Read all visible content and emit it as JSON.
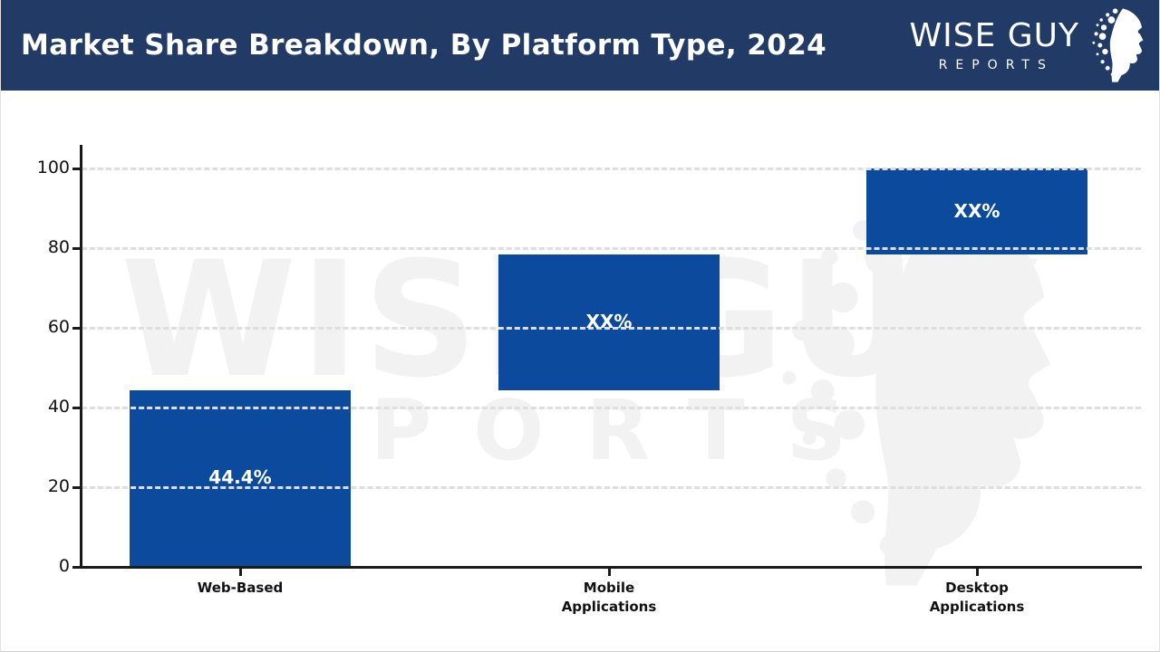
{
  "header": {
    "title": "Market Share Breakdown, By Platform Type, 2024",
    "logo": {
      "name": "WISE GUY",
      "sub": "REPORTS"
    }
  },
  "watermark": {
    "line1": "WISE GUY",
    "line2": "REPORTS"
  },
  "chart_data": {
    "type": "bar",
    "subtype": "waterfall",
    "title": "Market Share Breakdown, By Platform Type, 2024",
    "categories": [
      "Web-Based",
      "Mobile Applications",
      "Desktop Applications"
    ],
    "segments": [
      {
        "category": "Web-Based",
        "start": 0,
        "end": 44.4,
        "label": "44.4%"
      },
      {
        "category": "Mobile Applications",
        "start": 44.4,
        "end": 78.3,
        "label": "XX%"
      },
      {
        "category": "Desktop Applications",
        "start": 78.3,
        "end": 100,
        "label": "XX%"
      }
    ],
    "xlabel": "",
    "ylabel": "",
    "y_ticks": [
      0,
      20,
      40,
      60,
      80,
      100
    ],
    "ylim": [
      0,
      106
    ],
    "grid": "horizontal-dashed",
    "legend": "none",
    "bar_color": "#0c4a9e",
    "bar_label_color": "#ffffff"
  },
  "colors": {
    "header_bg": "#213a66",
    "bar": "#0c4a9e",
    "grid": "#dedede",
    "axis": "#1a1a1a",
    "watermark": "#f2f2f3"
  }
}
